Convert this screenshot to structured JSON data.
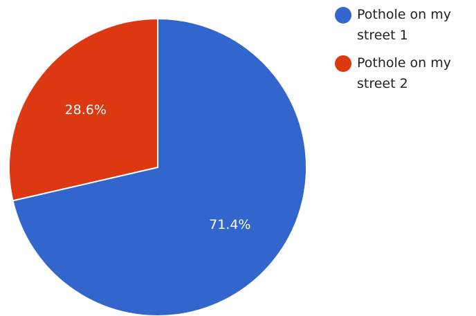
{
  "chart_data": {
    "type": "pie",
    "categories": [
      "Pothole on my street 1",
      "Pothole on my street 2"
    ],
    "values": [
      71.4,
      28.6
    ],
    "labels": [
      "71.4%",
      "28.6%"
    ],
    "colors": [
      "#3366cc",
      "#dc3912"
    ],
    "legend_position": "top-right",
    "start_angle": "12 o'clock",
    "direction": "clockwise"
  }
}
